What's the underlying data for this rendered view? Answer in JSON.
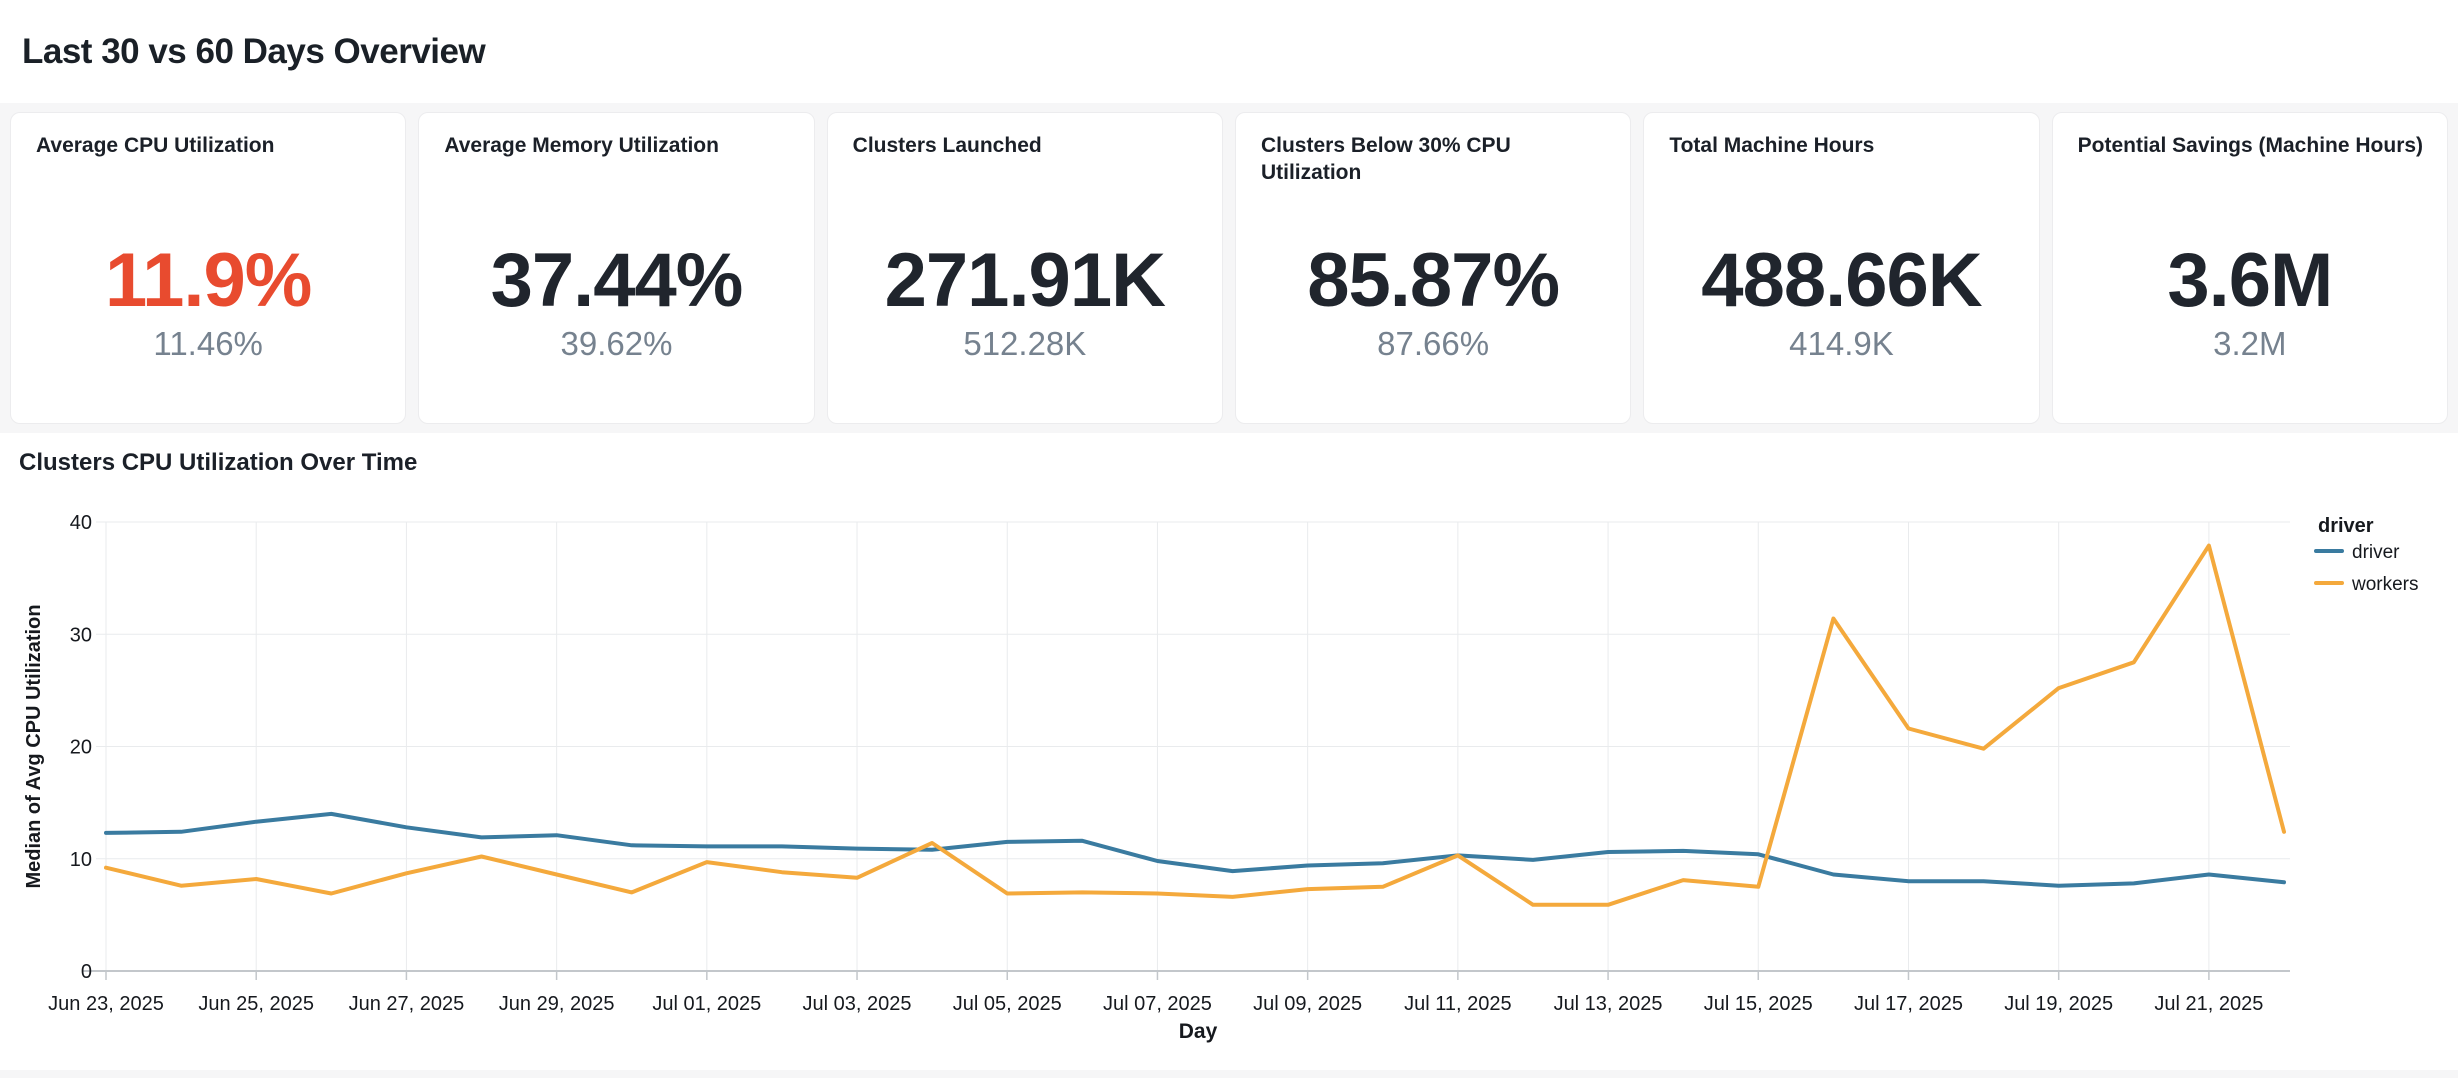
{
  "page": {
    "title": "Last 30 vs 60 Days Overview",
    "background_color": "#f6f6f7",
    "panel_color": "#ffffff"
  },
  "kpi_cards": [
    {
      "title": "Average CPU Utilization",
      "value": "11.9%",
      "previous": "11.46%",
      "value_color": "#e84b2f"
    },
    {
      "title": "Average Memory Utilization",
      "value": "37.44%",
      "previous": "39.62%",
      "value_color": "#20252d"
    },
    {
      "title": "Clusters Launched",
      "value": "271.91K",
      "previous": "512.28K",
      "value_color": "#20252d"
    },
    {
      "title": "Clusters Below 30% CPU Utilization",
      "value": "85.87%",
      "previous": "87.66%",
      "value_color": "#20252d"
    },
    {
      "title": "Total Machine Hours",
      "value": "488.66K",
      "previous": "414.9K",
      "value_color": "#20252d"
    },
    {
      "title": "Potential Savings (Machine Hours)",
      "value": "3.6M",
      "previous": "3.2M",
      "value_color": "#20252d"
    }
  ],
  "chart": {
    "title": "Clusters CPU Utilization Over Time"
  },
  "chart_data": {
    "type": "line",
    "title": "Clusters CPU Utilization Over Time",
    "xlabel": "Day",
    "ylabel": "Median of Avg CPU Utilization",
    "ylim": [
      0,
      40
    ],
    "y_ticks": [
      0,
      10,
      20,
      30,
      40
    ],
    "grid": true,
    "legend": {
      "title": "driver",
      "position": "top-right",
      "entries": [
        "driver",
        "workers"
      ]
    },
    "x": [
      "Jun 23, 2025",
      "Jun 24, 2025",
      "Jun 25, 2025",
      "Jun 26, 2025",
      "Jun 27, 2025",
      "Jun 28, 2025",
      "Jun 29, 2025",
      "Jun 30, 2025",
      "Jul 01, 2025",
      "Jul 02, 2025",
      "Jul 03, 2025",
      "Jul 04, 2025",
      "Jul 05, 2025",
      "Jul 06, 2025",
      "Jul 07, 2025",
      "Jul 08, 2025",
      "Jul 09, 2025",
      "Jul 10, 2025",
      "Jul 11, 2025",
      "Jul 12, 2025",
      "Jul 13, 2025",
      "Jul 14, 2025",
      "Jul 15, 2025",
      "Jul 16, 2025",
      "Jul 17, 2025",
      "Jul 18, 2025",
      "Jul 19, 2025",
      "Jul 20, 2025",
      "Jul 21, 2025",
      "Jul 22, 2025"
    ],
    "x_tick_labels": [
      "Jun 23, 2025",
      "Jun 25, 2025",
      "Jun 27, 2025",
      "Jun 29, 2025",
      "Jul 01, 2025",
      "Jul 03, 2025",
      "Jul 05, 2025",
      "Jul 07, 2025",
      "Jul 09, 2025",
      "Jul 11, 2025",
      "Jul 13, 2025",
      "Jul 15, 2025",
      "Jul 17, 2025",
      "Jul 19, 2025",
      "Jul 21, 2025"
    ],
    "series": [
      {
        "name": "driver",
        "color": "#3a7ba0",
        "values": [
          12.3,
          12.4,
          13.3,
          14.0,
          12.8,
          11.9,
          12.1,
          11.2,
          11.1,
          11.1,
          10.9,
          10.8,
          11.5,
          11.6,
          9.8,
          8.9,
          9.4,
          9.6,
          10.3,
          9.9,
          10.6,
          10.7,
          10.4,
          8.6,
          8.0,
          8.0,
          7.6,
          7.8,
          8.6,
          7.9
        ]
      },
      {
        "name": "workers",
        "color": "#f4a93c",
        "values": [
          9.2,
          7.6,
          8.2,
          6.9,
          8.7,
          10.2,
          8.6,
          7.0,
          9.7,
          8.8,
          8.3,
          11.4,
          6.9,
          7.0,
          6.9,
          6.6,
          7.3,
          7.5,
          10.3,
          5.9,
          5.9,
          8.1,
          7.5,
          31.4,
          21.6,
          19.8,
          25.2,
          27.5,
          37.9,
          12.4
        ]
      }
    ],
    "colors": {
      "gridline": "#e9ebed",
      "axis_line": "#c3c7cb",
      "tick_label": "#16191e"
    }
  }
}
